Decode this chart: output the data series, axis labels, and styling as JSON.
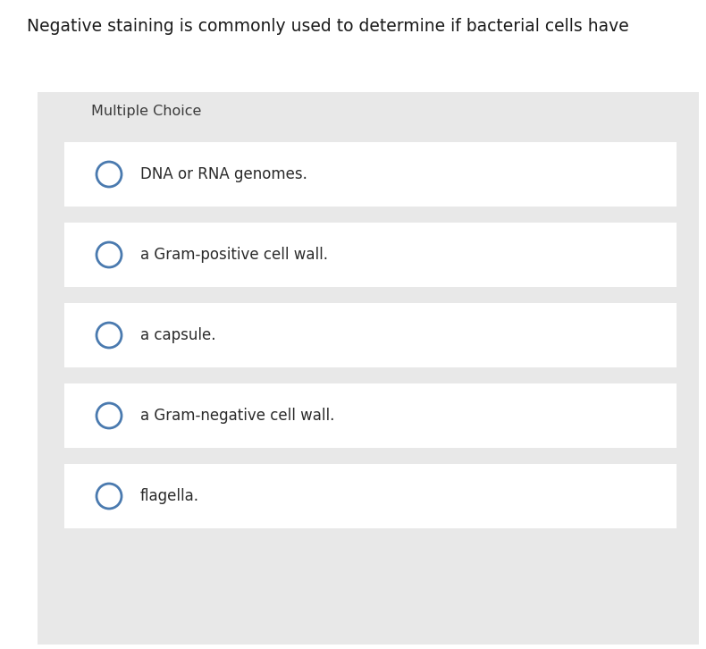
{
  "question": "Negative staining is commonly used to determine if bacterial cells have",
  "section_label": "Multiple Choice",
  "choices": [
    "DNA or RNA genomes.",
    "a Gram-positive cell wall.",
    "a capsule.",
    "a Gram-negative cell wall.",
    "flagella."
  ],
  "bg_color": "#ffffff",
  "outer_box_color": "#e8e8e8",
  "white_row_color": "#ffffff",
  "circle_edge_color": "#4a7aaf",
  "circle_fill_color": "#ffffff",
  "question_text_color": "#1a1a1a",
  "section_text_color": "#3a3a3a",
  "choice_text_color": "#2a2a2a",
  "question_fontsize": 13.5,
  "section_fontsize": 11.5,
  "choice_fontsize": 12.0,
  "fig_width": 7.9,
  "fig_height": 7.26,
  "dpi": 100
}
